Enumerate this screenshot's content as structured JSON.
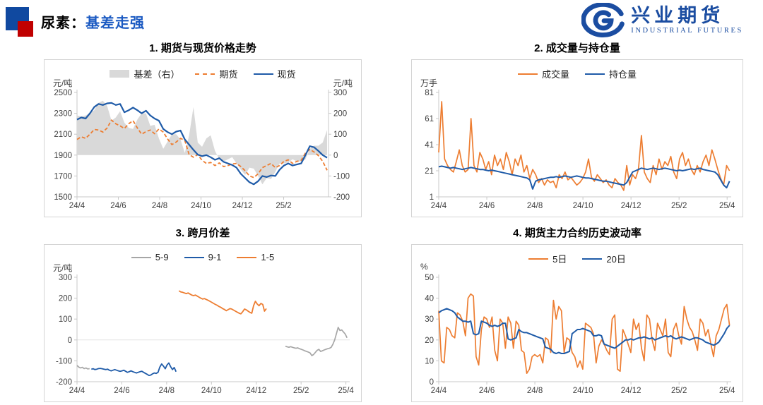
{
  "header": {
    "title_prefix": "尿素：",
    "title_highlight": "基差走强"
  },
  "brand": {
    "name": "兴业期货",
    "subtitle": "INDUSTRIAL FUTURES"
  },
  "colors": {
    "orange": "#ED7D31",
    "blue": "#1F5BA8",
    "gray_area": "#D9D9D9",
    "gray_line": "#A6A6A6",
    "title_blue": "#1B5AC2",
    "brand_blue": "#1B4DA1",
    "accent_blue_square": "#1049A0",
    "accent_red_square": "#C00000",
    "axis": "#c8c8c8",
    "zero_line": "#e3e3e3"
  },
  "chart_data": [
    {
      "type": "line",
      "title": "1. 期货与现货价格走势",
      "margins": {
        "l": 46,
        "r": 46,
        "t": 46,
        "b": 26
      },
      "x": {
        "min": 0,
        "max": 12.17,
        "ticks": [
          0,
          2,
          4,
          6,
          8,
          10
        ],
        "tick_labels": [
          "24/4",
          "24/6",
          "24/8",
          "24/10",
          "24/12",
          "25/2"
        ]
      },
      "y_left": {
        "label": "元/吨",
        "min": 1500,
        "max": 2500,
        "ticks": [
          1500,
          1700,
          1900,
          2100,
          2300,
          2500
        ]
      },
      "y_right": {
        "label": "元/吨",
        "min": -200,
        "max": 300,
        "ticks": [
          -200,
          -100,
          0,
          100,
          200,
          300
        ]
      },
      "series": [
        {
          "name": "基差（右）",
          "type": "area",
          "axis": "right",
          "color": "#D9D9D9",
          "x_range": [
            0,
            12.1
          ],
          "y": [
            190,
            185,
            190,
            200,
            215,
            250,
            260,
            235,
            165,
            180,
            210,
            155,
            130,
            125,
            170,
            200,
            200,
            140,
            145,
            80,
            30,
            65,
            100,
            100,
            75,
            10,
            95,
            230,
            60,
            40,
            80,
            95,
            20,
            -20,
            -30,
            -20,
            -10,
            -40,
            -70,
            -95,
            -60,
            -65,
            -100,
            -140,
            -110,
            -115,
            -80,
            -40,
            -40,
            -35,
            -20,
            -30,
            -30,
            -20,
            30,
            45,
            45,
            60,
            120
          ]
        },
        {
          "name": "期货",
          "type": "line",
          "dash": "5,3",
          "width": 1.8,
          "color": "#ED7D31",
          "x_range": [
            0,
            12.1
          ],
          "y": [
            2050,
            2075,
            2060,
            2100,
            2145,
            2140,
            2120,
            2160,
            2235,
            2200,
            2180,
            2155,
            2200,
            2230,
            2160,
            2100,
            2125,
            2140,
            2105,
            2150,
            2120,
            2055,
            2000,
            2025,
            2060,
            2040,
            1905,
            1880,
            1905,
            1850,
            1820,
            1830,
            1800,
            1825,
            1790,
            1800,
            1815,
            1820,
            1790,
            1750,
            1700,
            1685,
            1720,
            1780,
            1800,
            1820,
            1780,
            1800,
            1840,
            1855,
            1820,
            1840,
            1850,
            1920,
            1955,
            1930,
            1895,
            1840,
            1755
          ]
        },
        {
          "name": "现货",
          "type": "line",
          "width": 2.2,
          "color": "#1F5BA8",
          "x_range": [
            0,
            12.1
          ],
          "y": [
            2240,
            2260,
            2250,
            2300,
            2360,
            2390,
            2380,
            2395,
            2400,
            2380,
            2390,
            2310,
            2330,
            2355,
            2330,
            2300,
            2325,
            2280,
            2250,
            2230,
            2150,
            2120,
            2100,
            2125,
            2135,
            2050,
            2000,
            1950,
            1905,
            1890,
            1900,
            1880,
            1855,
            1870,
            1835,
            1820,
            1805,
            1780,
            1720,
            1680,
            1640,
            1620,
            1650,
            1700,
            1690,
            1705,
            1700,
            1760,
            1800,
            1820,
            1800,
            1810,
            1820,
            1900,
            1985,
            1975,
            1940,
            1900,
            1875
          ]
        }
      ]
    },
    {
      "type": "line",
      "title": "2. 成交量与持仓量",
      "margins": {
        "l": 38,
        "r": 16,
        "t": 46,
        "b": 26
      },
      "x": {
        "min": 0,
        "max": 12.17,
        "ticks": [
          0,
          2,
          4,
          6,
          8,
          10,
          12
        ],
        "tick_labels": [
          "24/4",
          "24/6",
          "24/8",
          "24/10",
          "24/12",
          "25/2",
          "25/4"
        ]
      },
      "y_left": {
        "label": "万手",
        "min": 1,
        "max": 81,
        "ticks": [
          1,
          21,
          41,
          61,
          81
        ]
      },
      "series": [
        {
          "name": "成交量",
          "type": "line",
          "width": 1.7,
          "color": "#ED7D31",
          "x_range": [
            0,
            12.1
          ],
          "y": [
            35,
            74,
            30,
            25,
            22,
            20,
            28,
            37,
            25,
            20,
            22,
            61,
            25,
            20,
            35,
            30,
            22,
            28,
            18,
            33,
            25,
            30,
            22,
            35,
            28,
            18,
            30,
            25,
            33,
            20,
            25,
            15,
            22,
            18,
            12,
            15,
            10,
            14,
            12,
            13,
            8,
            18,
            15,
            20,
            14,
            16,
            13,
            10,
            12,
            15,
            20,
            30,
            16,
            13,
            18,
            15,
            12,
            14,
            10,
            8,
            15,
            12,
            10,
            6,
            25,
            10,
            18,
            15,
            22,
            48,
            20,
            15,
            12,
            25,
            18,
            30,
            22,
            28,
            25,
            32,
            20,
            15,
            30,
            35,
            25,
            30,
            22,
            18,
            25,
            20,
            28,
            33,
            25,
            37,
            30,
            22,
            15,
            10,
            25,
            21
          ]
        },
        {
          "name": "持仓量",
          "type": "line",
          "width": 2.0,
          "color": "#1F5BA8",
          "x_range": [
            0,
            12.1
          ],
          "y": [
            24,
            24.5,
            24,
            23.5,
            23,
            23.5,
            23,
            22.5,
            22,
            22.5,
            23,
            23.5,
            23,
            22.5,
            22,
            22,
            21.5,
            21,
            21.5,
            21,
            20.5,
            20,
            19.5,
            19,
            18.5,
            18,
            17.5,
            17,
            16.5,
            16,
            15.5,
            14,
            7,
            13,
            14,
            14.5,
            15,
            15.5,
            16,
            16,
            16.5,
            16,
            16.5,
            17,
            16.5,
            16,
            16.5,
            17,
            16.5,
            16,
            15.5,
            15.5,
            15,
            14.5,
            14,
            13.5,
            13,
            13,
            12.5,
            12,
            11.5,
            11,
            10.5,
            10,
            12,
            16,
            20,
            21,
            22,
            23,
            22.5,
            22,
            22.5,
            23,
            22.5,
            22,
            22.5,
            23,
            22.5,
            22,
            21.5,
            21,
            21.5,
            21,
            21.5,
            22,
            22.5,
            22,
            22.5,
            23,
            22,
            21.5,
            21,
            20.5,
            20,
            18,
            14,
            10,
            8,
            13
          ]
        }
      ]
    },
    {
      "type": "line",
      "title": "3. 跨月价差",
      "zero_line": true,
      "margins": {
        "l": 46,
        "r": 16,
        "t": 46,
        "b": 26
      },
      "x": {
        "min": 0,
        "max": 12.17,
        "ticks": [
          0,
          2,
          4,
          6,
          8,
          10,
          12
        ],
        "tick_labels": [
          "24/4",
          "24/6",
          "24/8",
          "24/10",
          "24/12",
          "25/2",
          "25/4"
        ]
      },
      "y_left": {
        "label": "元/吨",
        "min": -200,
        "max": 300,
        "ticks": [
          -200,
          -100,
          0,
          100,
          200,
          300
        ]
      },
      "series": [
        {
          "name": "5-9",
          "type": "line",
          "width": 1.7,
          "color": "#A6A6A6",
          "x_range": [
            0,
            0.56
          ],
          "y": [
            -122,
            -130,
            -134,
            -131,
            -137,
            -134,
            -139,
            -137
          ]
        },
        {
          "name": "9-1",
          "type": "line",
          "width": 1.8,
          "color": "#1F5BA8",
          "x_range": [
            0.64,
            4.42
          ],
          "y": [
            -140,
            -138,
            -142,
            -140,
            -137,
            -136,
            -138,
            -140,
            -142,
            -140,
            -145,
            -148,
            -145,
            -142,
            -145,
            -148,
            -150,
            -148,
            -145,
            -150,
            -155,
            -152,
            -148,
            -152,
            -155,
            -158,
            -155,
            -152,
            -150,
            -155,
            -160,
            -165,
            -170,
            -168,
            -162,
            -158,
            -160,
            -155,
            -130,
            -115,
            -125,
            -138,
            -120,
            -110,
            -128,
            -142,
            -132,
            -152
          ]
        },
        {
          "name": "1-5",
          "type": "line",
          "width": 1.8,
          "color": "#ED7D31",
          "x_range": [
            4.55,
            8.45
          ],
          "y": [
            235,
            230,
            228,
            225,
            222,
            225,
            220,
            215,
            212,
            215,
            210,
            205,
            200,
            196,
            198,
            194,
            190,
            185,
            180,
            175,
            170,
            166,
            160,
            156,
            150,
            146,
            140,
            145,
            150,
            148,
            143,
            138,
            133,
            128,
            125,
            135,
            148,
            144,
            138,
            132,
            128,
            165,
            185,
            172,
            164,
            175,
            170,
            138,
            150
          ]
        },
        {
          "name": "5-9",
          "legend": false,
          "type": "line",
          "width": 1.7,
          "color": "#A6A6A6",
          "x_range": [
            9.3,
            12.05
          ],
          "y": [
            -30,
            -33,
            -35,
            -32,
            -35,
            -38,
            -40,
            -38,
            -42,
            -45,
            -48,
            -52,
            -55,
            -58,
            -62,
            -75,
            -70,
            -60,
            -50,
            -45,
            -55,
            -52,
            -48,
            -45,
            -42,
            -40,
            -35,
            -20,
            0,
            30,
            60,
            45,
            48,
            38,
            28,
            10
          ]
        }
      ]
    },
    {
      "type": "line",
      "title": "4. 期货主力合约历史波动率",
      "margins": {
        "l": 38,
        "r": 16,
        "t": 46,
        "b": 26
      },
      "x": {
        "min": 0,
        "max": 12.17,
        "ticks": [
          0,
          2,
          4,
          6,
          8,
          10,
          12
        ],
        "tick_labels": [
          "24/4",
          "24/6",
          "24/8",
          "24/10",
          "24/12",
          "25/2",
          "25/4"
        ]
      },
      "y_left": {
        "label": "%",
        "min": 0,
        "max": 50,
        "ticks": [
          0,
          10,
          20,
          30,
          40,
          50
        ]
      },
      "series": [
        {
          "name": "5日",
          "type": "line",
          "width": 1.7,
          "color": "#ED7D31",
          "x_range": [
            0,
            12.1
          ],
          "y": [
            34,
            10,
            9,
            26,
            25,
            22,
            21,
            33,
            32,
            29,
            22,
            40,
            42,
            41,
            12,
            8,
            25,
            31,
            30,
            26,
            31,
            15,
            10,
            30,
            28,
            16,
            31,
            28,
            16,
            29,
            27,
            15,
            14,
            4,
            6,
            12,
            13,
            12,
            13,
            9,
            21,
            20,
            14,
            39,
            30,
            36,
            34,
            14,
            21,
            20,
            14,
            12,
            7,
            10,
            6,
            28,
            27,
            26,
            23,
            9,
            17,
            20,
            18,
            15,
            13,
            30,
            32,
            6,
            5,
            25,
            22,
            18,
            14,
            30,
            25,
            28,
            16,
            10,
            32,
            30,
            20,
            15,
            28,
            25,
            22,
            30,
            14,
            12,
            25,
            28,
            22,
            18,
            36,
            30,
            26,
            24,
            20,
            15,
            30,
            28,
            22,
            25,
            18,
            12,
            22,
            25,
            30,
            35,
            37,
            27
          ]
        },
        {
          "name": "20日",
          "type": "line",
          "width": 2.0,
          "color": "#1F5BA8",
          "x_range": [
            0,
            12.1
          ],
          "y": [
            33,
            34,
            34.5,
            35,
            34.5,
            34,
            33,
            31,
            30,
            29,
            29,
            28.5,
            29,
            23,
            22.5,
            23,
            29,
            28.5,
            28,
            27,
            26.5,
            27,
            26.5,
            27,
            28,
            28,
            20.5,
            20,
            20.5,
            21,
            25,
            24,
            23.5,
            23.5,
            23,
            22.5,
            22,
            21.5,
            21,
            20.5,
            16.5,
            16,
            15.5,
            14,
            13.5,
            14,
            13.5,
            13.5,
            14,
            14.5,
            23,
            24,
            25,
            25,
            25.5,
            25,
            24.5,
            24,
            22,
            22,
            22.5,
            22,
            18,
            17.5,
            17,
            16.5,
            16,
            17,
            18,
            19,
            20,
            20,
            20.5,
            20,
            20.5,
            21,
            21,
            21.5,
            21,
            20.5,
            21,
            20,
            20.5,
            21,
            21.5,
            22,
            21.5,
            22,
            21,
            20.5,
            21,
            21.5,
            21,
            20.5,
            20,
            20.5,
            21,
            21,
            20.5,
            20,
            19,
            18.5,
            18,
            17.5,
            18,
            19,
            21,
            23,
            25.5,
            27
          ]
        }
      ]
    }
  ]
}
